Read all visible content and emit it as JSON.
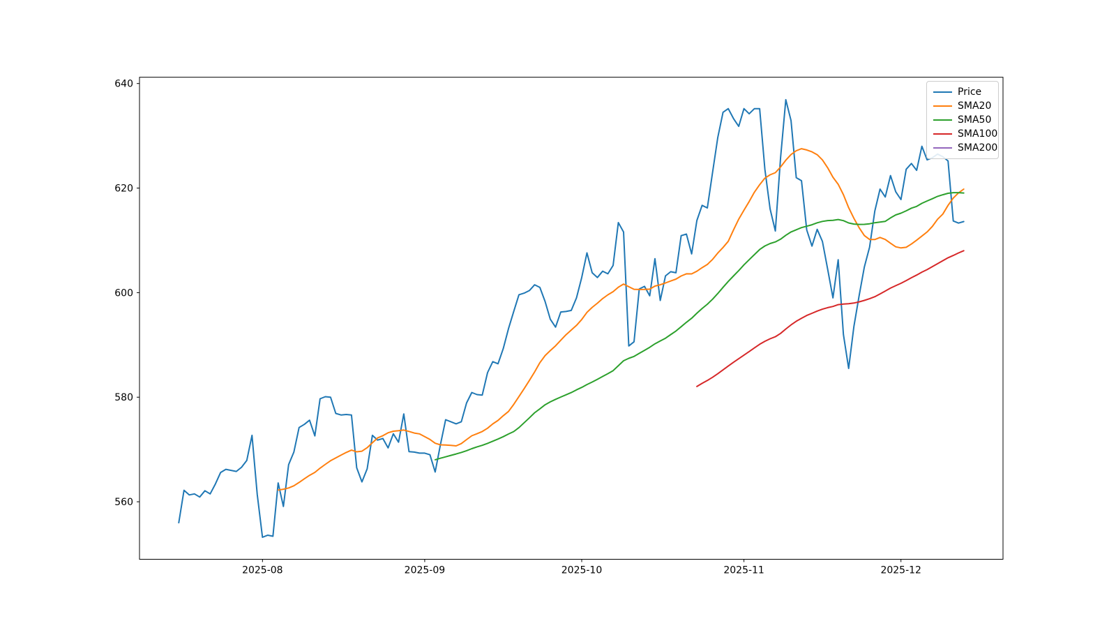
{
  "figure": {
    "background": "#ffffff",
    "legend": {
      "entries": [
        {
          "label": "Price",
          "color": "#1f77b4"
        },
        {
          "label": "SMA20",
          "color": "#ff7f0e"
        },
        {
          "label": "SMA50",
          "color": "#2ca02c"
        },
        {
          "label": "SMA100",
          "color": "#d62728"
        },
        {
          "label": "SMA200",
          "color": "#9467bd"
        }
      ]
    }
  },
  "chart_data": {
    "type": "line",
    "title": "",
    "xlabel": "",
    "ylabel": "",
    "grid": false,
    "legend_position": "upper right",
    "x_start_date": "2025-07-16",
    "x_frequency": "daily",
    "x_num_points": 151,
    "xlim_days": [
      -7.5,
      157.5
    ],
    "ylim": [
      549.0,
      641.2
    ],
    "x_ticks": [
      {
        "day_index": 16,
        "label": "2025-08"
      },
      {
        "day_index": 47,
        "label": "2025-09"
      },
      {
        "day_index": 77,
        "label": "2025-10"
      },
      {
        "day_index": 108,
        "label": "2025-11"
      },
      {
        "day_index": 138,
        "label": "2025-12"
      }
    ],
    "y_ticks": [
      560,
      580,
      600,
      620,
      640
    ],
    "series": [
      {
        "name": "Price",
        "color": "#1f77b4",
        "values": [
          556.0,
          562.2,
          561.3,
          561.5,
          560.9,
          562.1,
          561.5,
          563.4,
          565.6,
          566.2,
          566.0,
          565.8,
          566.6,
          567.9,
          572.7,
          561.4,
          553.2,
          553.6,
          553.4,
          563.6,
          559.1,
          567.1,
          569.5,
          574.2,
          574.8,
          575.6,
          572.6,
          579.7,
          580.1,
          580.0,
          576.9,
          576.6,
          576.7,
          576.6,
          566.5,
          563.8,
          566.3,
          572.7,
          571.8,
          572.1,
          570.3,
          573.0,
          571.4,
          576.8,
          569.6,
          569.5,
          569.3,
          569.3,
          569.0,
          565.7,
          570.9,
          575.7,
          575.3,
          574.9,
          575.3,
          578.9,
          580.9,
          580.5,
          580.4,
          584.7,
          586.8,
          586.4,
          589.3,
          593.1,
          596.4,
          599.6,
          599.9,
          600.4,
          601.5,
          601.0,
          598.3,
          594.9,
          593.4,
          596.3,
          596.4,
          596.6,
          599.0,
          602.9,
          607.6,
          603.8,
          602.9,
          604.1,
          603.6,
          605.2,
          613.4,
          611.6,
          589.8,
          590.6,
          600.7,
          601.2,
          599.4,
          606.5,
          598.5,
          603.2,
          604.0,
          603.8,
          610.9,
          611.2,
          607.4,
          613.8,
          616.7,
          616.2,
          623.0,
          629.7,
          634.5,
          635.2,
          633.3,
          631.8,
          635.2,
          634.2,
          635.2,
          635.2,
          623.6,
          616.0,
          611.8,
          625.8,
          636.9,
          632.9,
          622.0,
          621.4,
          612.0,
          608.9,
          612.1,
          609.8,
          604.5,
          599.0,
          606.3,
          592.0,
          585.5,
          593.5,
          599.4,
          604.9,
          608.7,
          615.6,
          619.8,
          618.3,
          622.4,
          619.3,
          617.8,
          623.6,
          624.7,
          623.4,
          628.0,
          625.4,
          625.8,
          626.5,
          626.0,
          625.2,
          613.7,
          613.3,
          613.6
        ]
      },
      {
        "name": "SMA20",
        "color": "#ff7f0e",
        "window": 20,
        "derived": "20-day rolling mean of Price"
      },
      {
        "name": "SMA50",
        "color": "#2ca02c",
        "window": 50,
        "derived": "50-day rolling mean of Price"
      },
      {
        "name": "SMA100",
        "color": "#d62728",
        "window": 100,
        "derived": "100-day rolling mean of Price"
      },
      {
        "name": "SMA200",
        "color": "#9467bd",
        "window": 200,
        "derived": "200-day rolling mean of Price (window exceeds data length, so no visible line)"
      }
    ]
  }
}
